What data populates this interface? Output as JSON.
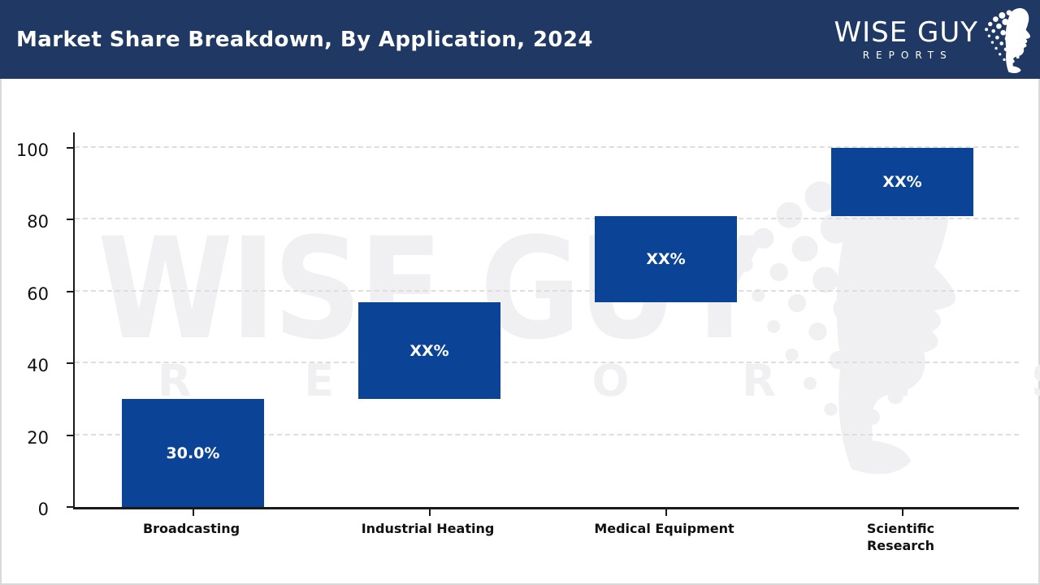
{
  "header": {
    "title": "Market Share Breakdown, By Application, 2024",
    "background_color": "#1f3864",
    "logo": {
      "line1": "WISE GUY",
      "line2": "REPORTS",
      "head_icon": "dotted-head-profile"
    }
  },
  "watermark": {
    "line1": "WISE GUY",
    "line2": "R E P O R T S"
  },
  "chart_data": {
    "type": "bar",
    "subtype": "floating-waterfall",
    "title": "Market Share Breakdown, By Application, 2024",
    "categories": [
      "Broadcasting",
      "Industrial Heating",
      "Medical Equipment",
      "Scientific Research"
    ],
    "display_categories": [
      "Broadcasting",
      "Industrial Heating",
      "Medical Equipment",
      "Scientific\nResearch"
    ],
    "bars": [
      {
        "category": "Broadcasting",
        "start": 0,
        "end": 30,
        "label": "30.0%"
      },
      {
        "category": "Industrial Heating",
        "start": 30,
        "end": 57,
        "label": "XX%"
      },
      {
        "category": "Medical Equipment",
        "start": 57,
        "end": 81,
        "label": "XX%"
      },
      {
        "category": "Scientific Research",
        "start": 81,
        "end": 100,
        "label": "XX%"
      }
    ],
    "yticks": [
      0,
      20,
      40,
      60,
      80,
      100
    ],
    "ylim": [
      0,
      105
    ],
    "grid": {
      "horizontal": true,
      "style": "dashed",
      "color": "#dedede"
    },
    "bar_color": "#0b4397",
    "value_label_color": "#ffffff",
    "axis_color": "#1a1a1a",
    "legend": "none"
  }
}
